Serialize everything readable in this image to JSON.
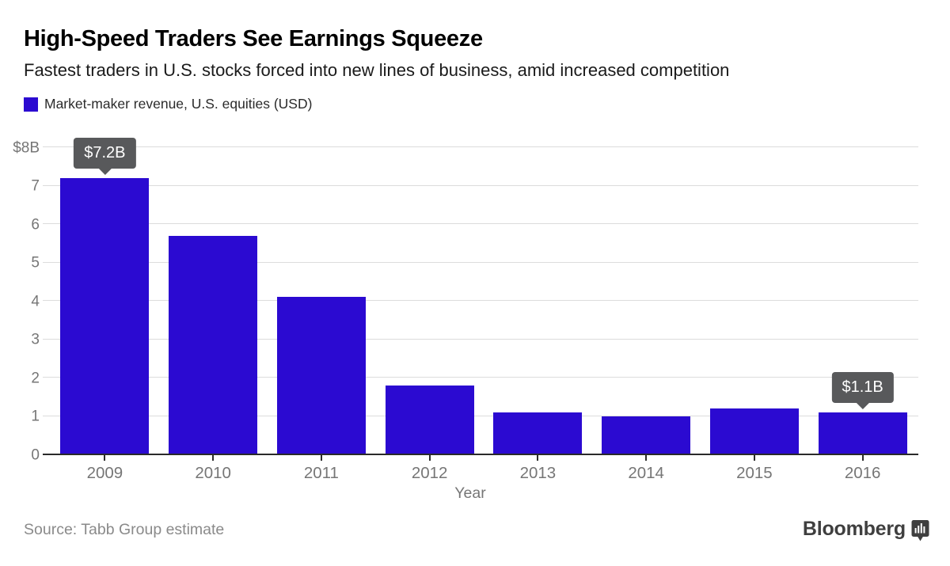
{
  "header": {
    "title": "High-Speed Traders See Earnings Squeeze",
    "subtitle": "Fastest traders in U.S. stocks forced into new lines of business, amid increased competition"
  },
  "legend": {
    "label": "Market-maker revenue, U.S. equities (USD)",
    "swatch_color": "#2b0ad1"
  },
  "chart_data": {
    "type": "bar",
    "categories": [
      "2009",
      "2010",
      "2011",
      "2012",
      "2013",
      "2014",
      "2015",
      "2016"
    ],
    "values": [
      7.2,
      5.7,
      4.1,
      1.8,
      1.1,
      1.0,
      1.2,
      1.1
    ],
    "series_name": "Market-maker revenue, U.S. equities (USD)",
    "title": "High-Speed Traders See Earnings Squeeze",
    "xlabel": "Year",
    "ylabel": "",
    "ylim": [
      0,
      8
    ],
    "yticks": [
      {
        "value": 8,
        "label": "$8B"
      },
      {
        "value": 7,
        "label": "7"
      },
      {
        "value": 6,
        "label": "6"
      },
      {
        "value": 5,
        "label": "5"
      },
      {
        "value": 4,
        "label": "4"
      },
      {
        "value": 3,
        "label": "3"
      },
      {
        "value": 2,
        "label": "2"
      },
      {
        "value": 1,
        "label": "1"
      },
      {
        "value": 0,
        "label": "0"
      }
    ],
    "grid": "horizontal",
    "legend_position": "top-left",
    "bar_color": "#2b0ad1",
    "annotations": [
      {
        "category": "2009",
        "text": "$7.2B"
      },
      {
        "category": "2016",
        "text": "$1.1B"
      }
    ]
  },
  "footer": {
    "source": "Source: Tabb Group estimate",
    "brand": "Bloomberg",
    "brand_icon": "bloomberg-chart-bubble-icon"
  },
  "colors": {
    "bar": "#2b0ad1",
    "callout_bg": "#58595b",
    "callout_text": "#ffffff",
    "gridline": "#dcdcdc",
    "axis_line": "#2a2a2a",
    "axis_label": "#767676",
    "source_text": "#8a8a8a",
    "brand_text": "#3f3f3f",
    "background": "#ffffff"
  }
}
